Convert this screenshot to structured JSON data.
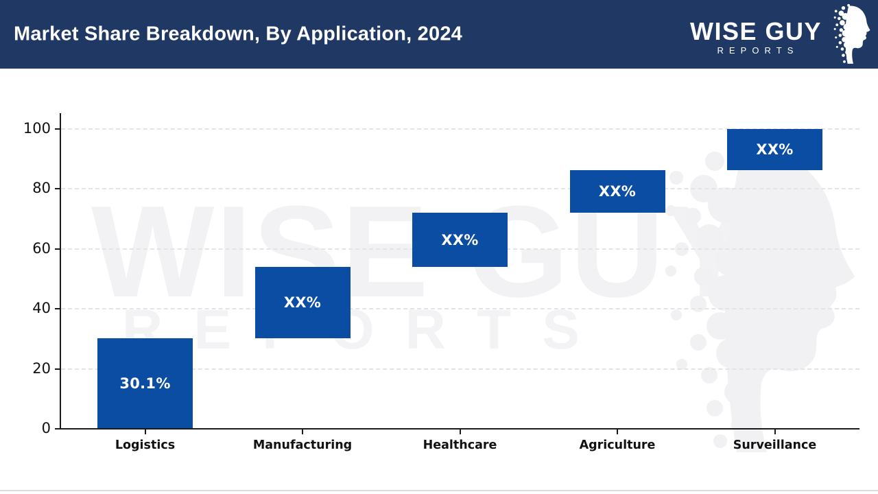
{
  "header": {
    "title": "Market Share Breakdown, By Application, 2024",
    "logo": {
      "line1": "WISE GUY",
      "line2": "REPORTS"
    }
  },
  "watermark": {
    "line1": "WISE GUY",
    "line2": "REPORTS"
  },
  "colors": {
    "header_bg": "#1f3864",
    "bar": "#0b4da3",
    "grid": "#e4e4e4",
    "axis": "#1a1a1a",
    "bar_label": "#ffffff"
  },
  "chart_data": {
    "type": "bar",
    "subtype": "waterfall",
    "title": "Market Share Breakdown, By Application, 2024",
    "categories": [
      "Logistics",
      "Manufacturing",
      "Healthcare",
      "Agriculture",
      "Surveillance"
    ],
    "segments": [
      {
        "label": "Logistics",
        "start": 0,
        "end": 30.1,
        "bar_label": "30.1%"
      },
      {
        "label": "Manufacturing",
        "start": 30.1,
        "end": 53.9,
        "bar_label": "XX%"
      },
      {
        "label": "Healthcare",
        "start": 53.9,
        "end": 71.9,
        "bar_label": "XX%"
      },
      {
        "label": "Agriculture",
        "start": 71.9,
        "end": 86.1,
        "bar_label": "XX%"
      },
      {
        "label": "Surveillance",
        "start": 86.1,
        "end": 100,
        "bar_label": "XX%"
      }
    ],
    "y_ticks": [
      0,
      20,
      40,
      60,
      80,
      100
    ],
    "ylim": [
      0,
      105
    ],
    "xlabel": "",
    "ylabel": "",
    "grid": "horizontal-dashed",
    "legend": "none",
    "bar_color": "#0b4da3",
    "bar_label_color": "#ffffff"
  }
}
